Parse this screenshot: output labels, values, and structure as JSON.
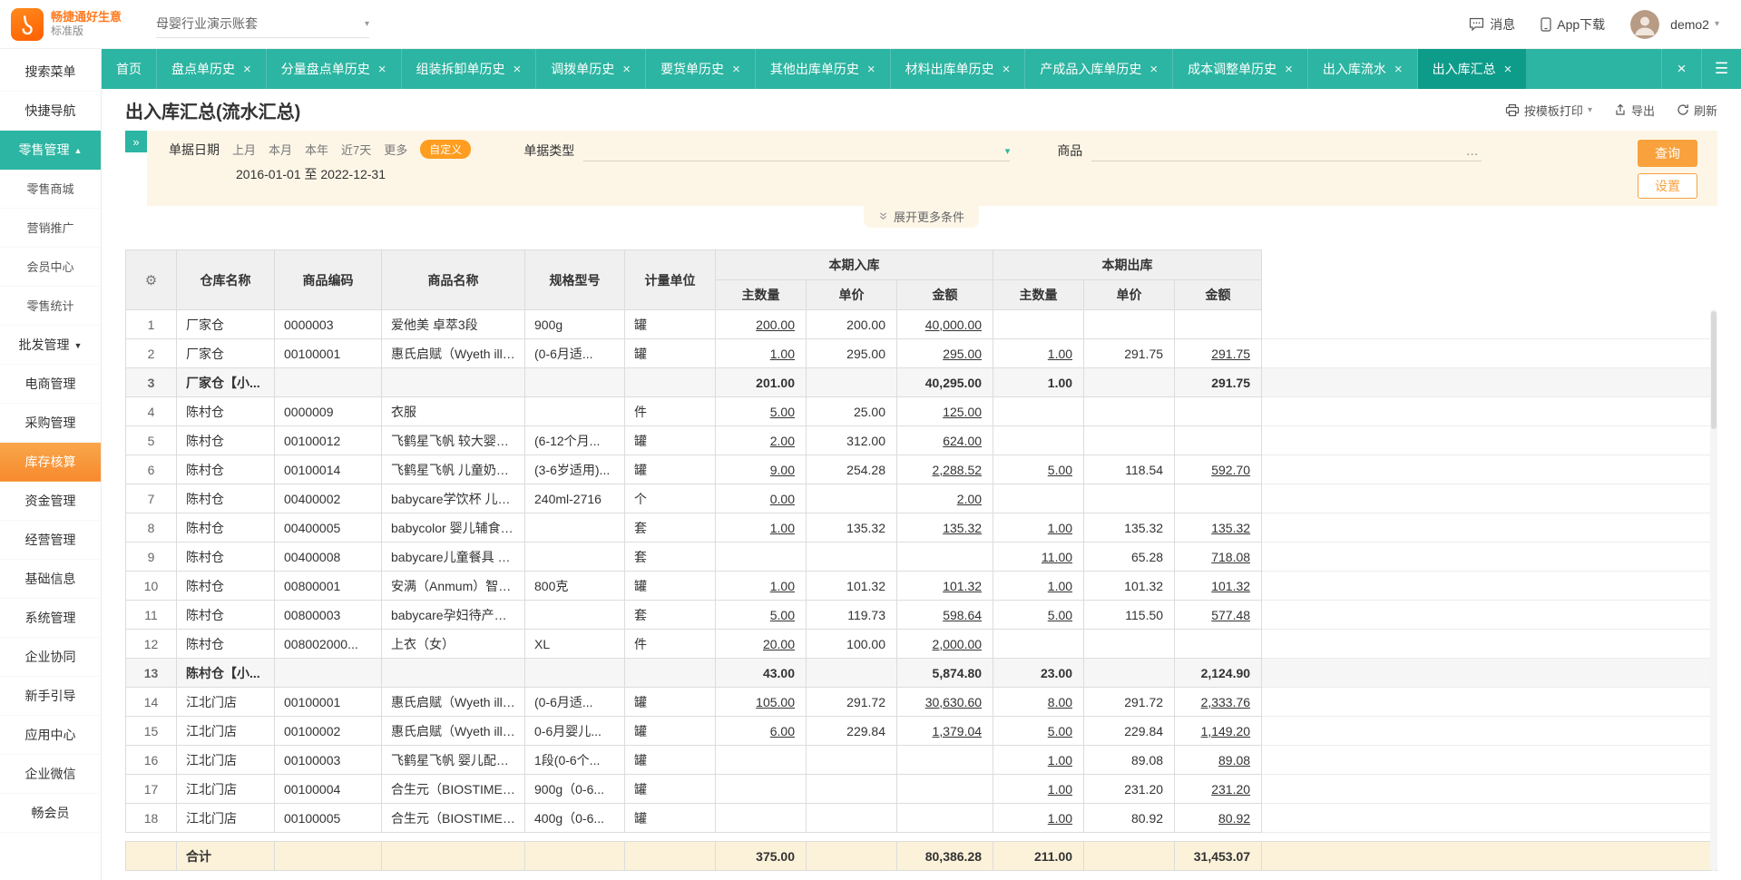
{
  "icons": {
    "chevron_down": "▾",
    "triangle_up": "▲",
    "triangle_down": "▼",
    "close": "×",
    "menu": "☰",
    "double_right": "»",
    "gear": "⚙",
    "ellipsis": "..."
  },
  "header": {
    "brand": "畅捷通好生意",
    "edition": "标准版",
    "account": "母婴行业演示账套",
    "messages": "消息",
    "app_download": "App下载",
    "user": "demo2"
  },
  "tabs": [
    {
      "label": "首页",
      "closable": false,
      "active": false
    },
    {
      "label": "盘点单历史",
      "closable": true,
      "active": false
    },
    {
      "label": "分量盘点单历史",
      "closable": true,
      "active": false
    },
    {
      "label": "组装拆卸单历史",
      "closable": true,
      "active": false
    },
    {
      "label": "调拨单历史",
      "closable": true,
      "active": false
    },
    {
      "label": "要货单历史",
      "closable": true,
      "active": false
    },
    {
      "label": "其他出库单历史",
      "closable": true,
      "active": false
    },
    {
      "label": "材料出库单历史",
      "closable": true,
      "active": false
    },
    {
      "label": "产成品入库单历史",
      "closable": true,
      "active": false
    },
    {
      "label": "成本调整单历史",
      "closable": true,
      "active": false
    },
    {
      "label": "出入库流水",
      "closable": true,
      "active": false
    },
    {
      "label": "出入库汇总",
      "closable": true,
      "active": true
    }
  ],
  "sidebar": [
    {
      "label": "搜索菜单"
    },
    {
      "label": "快捷导航"
    },
    {
      "label": "零售管理",
      "style": "teal",
      "arrow": "up"
    },
    {
      "label": "零售商城",
      "child": true
    },
    {
      "label": "营销推广",
      "child": true
    },
    {
      "label": "会员中心",
      "child": true
    },
    {
      "label": "零售统计",
      "child": true
    },
    {
      "label": "批发管理",
      "arrow": "down"
    },
    {
      "label": "电商管理"
    },
    {
      "label": "采购管理"
    },
    {
      "label": "库存核算",
      "style": "orange"
    },
    {
      "label": "资金管理"
    },
    {
      "label": "经营管理"
    },
    {
      "label": "基础信息"
    },
    {
      "label": "系统管理"
    },
    {
      "label": "企业协同"
    },
    {
      "label": "新手引导"
    },
    {
      "label": "应用中心"
    },
    {
      "label": "企业微信"
    },
    {
      "label": "畅会员"
    }
  ],
  "page": {
    "title": "出入库汇总(流水汇总)",
    "print": "按模板打印",
    "export": "导出",
    "refresh": "刷新"
  },
  "filters": {
    "date_label": "单据日期",
    "date_options": [
      "上月",
      "本月",
      "本年",
      "近7天",
      "更多"
    ],
    "custom_badge": "自定义",
    "date_range": "2016-01-01 至 2022-12-31",
    "doc_type_label": "单据类型",
    "product_label": "商品",
    "search": "查询",
    "settings": "设置",
    "expand_more": "展开更多条件"
  },
  "table": {
    "main_columns": [
      "仓库名称",
      "商品编码",
      "商品名称",
      "规格型号",
      "计量单位"
    ],
    "group_in": "本期入库",
    "group_out": "本期出库",
    "sub_columns": [
      "主数量",
      "单价",
      "金额"
    ],
    "rows": [
      {
        "n": "1",
        "wh": "厂家仓",
        "code": "0000003",
        "name": "爱他美 卓萃3段",
        "spec": "900g",
        "unit": "罐",
        "iq": "200.00",
        "ip": "200.00",
        "ia": "40,000.00",
        "oq": "",
        "op": "",
        "oa": "",
        "sub": false
      },
      {
        "n": "2",
        "wh": "厂家仓",
        "code": "00100001",
        "name": "惠氏启赋（Wyeth illu...",
        "spec": "(0-6月适...",
        "unit": "罐",
        "iq": "1.00",
        "ip": "295.00",
        "ia": "295.00",
        "oq": "1.00",
        "op": "291.75",
        "oa": "291.75",
        "sub": false
      },
      {
        "n": "3",
        "wh": "厂家仓【小...",
        "code": "",
        "name": "",
        "spec": "",
        "unit": "",
        "iq": "201.00",
        "ip": "",
        "ia": "40,295.00",
        "oq": "1.00",
        "op": "",
        "oa": "291.75",
        "sub": true
      },
      {
        "n": "4",
        "wh": "陈村仓",
        "code": "0000009",
        "name": "衣服",
        "spec": "",
        "unit": "件",
        "iq": "5.00",
        "ip": "25.00",
        "ia": "125.00",
        "oq": "",
        "op": "",
        "oa": "",
        "sub": false
      },
      {
        "n": "5",
        "wh": "陈村仓",
        "code": "00100012",
        "name": "飞鹤星飞帆 较大婴儿配...",
        "spec": "(6-12个月...",
        "unit": "罐",
        "iq": "2.00",
        "ip": "312.00",
        "ia": "624.00",
        "oq": "",
        "op": "",
        "oa": "",
        "sub": false
      },
      {
        "n": "6",
        "wh": "陈村仓",
        "code": "00100014",
        "name": "飞鹤星飞帆 儿童奶粉 4...",
        "spec": "(3-6岁适用)...",
        "unit": "罐",
        "iq": "9.00",
        "ip": "254.28",
        "ia": "2,288.52",
        "oq": "5.00",
        "op": "118.54",
        "oa": "592.70",
        "sub": false
      },
      {
        "n": "7",
        "wh": "陈村仓",
        "code": "00400002",
        "name": "babycare学饮杯 儿童...",
        "spec": "240ml-2716",
        "unit": "个",
        "iq": "0.00",
        "ip": "",
        "ia": "2.00",
        "oq": "",
        "op": "",
        "oa": "",
        "sub": false
      },
      {
        "n": "8",
        "wh": "陈村仓",
        "code": "00400005",
        "name": "babycolor 婴儿辅食机...",
        "spec": "",
        "unit": "套",
        "iq": "1.00",
        "ip": "135.32",
        "ia": "135.32",
        "oq": "1.00",
        "op": "135.32",
        "oa": "135.32",
        "sub": false
      },
      {
        "n": "9",
        "wh": "陈村仓",
        "code": "00400008",
        "name": "babycare儿童餐具 婴...",
        "spec": "",
        "unit": "套",
        "iq": "",
        "ip": "",
        "ia": "",
        "oq": "11.00",
        "op": "65.28",
        "oa": "718.08",
        "sub": false
      },
      {
        "n": "10",
        "wh": "陈村仓",
        "code": "00800001",
        "name": "安满（Anmum）智孕...",
        "spec": "800克",
        "unit": "罐",
        "iq": "1.00",
        "ip": "101.32",
        "ia": "101.32",
        "oq": "1.00",
        "op": "101.32",
        "oa": "101.32",
        "sub": false
      },
      {
        "n": "11",
        "wh": "陈村仓",
        "code": "00800003",
        "name": "babycare孕妇待产包...",
        "spec": "",
        "unit": "套",
        "iq": "5.00",
        "ip": "119.73",
        "ia": "598.64",
        "oq": "5.00",
        "op": "115.50",
        "oa": "577.48",
        "sub": false
      },
      {
        "n": "12",
        "wh": "陈村仓",
        "code": "008002000...",
        "name": "上衣（女）",
        "spec": "XL",
        "unit": "件",
        "iq": "20.00",
        "ip": "100.00",
        "ia": "2,000.00",
        "oq": "",
        "op": "",
        "oa": "",
        "sub": false
      },
      {
        "n": "13",
        "wh": "陈村仓【小...",
        "code": "",
        "name": "",
        "spec": "",
        "unit": "",
        "iq": "43.00",
        "ip": "",
        "ia": "5,874.80",
        "oq": "23.00",
        "op": "",
        "oa": "2,124.90",
        "sub": true
      },
      {
        "n": "14",
        "wh": "江北门店",
        "code": "00100001",
        "name": "惠氏启赋（Wyeth illu...",
        "spec": "(0-6月适...",
        "unit": "罐",
        "iq": "105.00",
        "ip": "291.72",
        "ia": "30,630.60",
        "oq": "8.00",
        "op": "291.72",
        "oa": "2,333.76",
        "sub": false
      },
      {
        "n": "15",
        "wh": "江北门店",
        "code": "00100002",
        "name": "惠氏启赋（Wyeth illu...",
        "spec": "0-6月婴儿...",
        "unit": "罐",
        "iq": "6.00",
        "ip": "229.84",
        "ia": "1,379.04",
        "oq": "5.00",
        "op": "229.84",
        "oa": "1,149.20",
        "sub": false
      },
      {
        "n": "16",
        "wh": "江北门店",
        "code": "00100003",
        "name": "飞鹤星飞帆 婴儿配方奶...",
        "spec": "1段(0-6个...",
        "unit": "罐",
        "iq": "",
        "ip": "",
        "ia": "",
        "oq": "1.00",
        "op": "89.08",
        "oa": "89.08",
        "sub": false
      },
      {
        "n": "17",
        "wh": "江北门店",
        "code": "00100004",
        "name": "合生元（BIOSTIME）...",
        "spec": "900g（0-6...",
        "unit": "罐",
        "iq": "",
        "ip": "",
        "ia": "",
        "oq": "1.00",
        "op": "231.20",
        "oa": "231.20",
        "sub": false
      },
      {
        "n": "18",
        "wh": "江北门店",
        "code": "00100005",
        "name": "合生元（BIOSTIME）...",
        "spec": "400g（0-6...",
        "unit": "罐",
        "iq": "",
        "ip": "",
        "ia": "",
        "oq": "1.00",
        "op": "80.92",
        "oa": "80.92",
        "sub": false
      }
    ],
    "total": {
      "label": "合计",
      "in_qty": "375.00",
      "in_amount": "80,386.28",
      "out_qty": "211.00",
      "out_amount": "31,453.07"
    }
  }
}
